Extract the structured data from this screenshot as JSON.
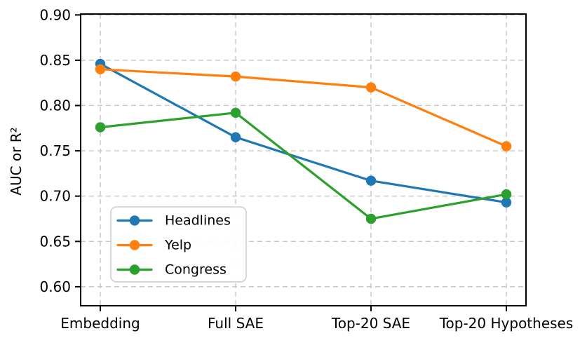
{
  "chart_data": {
    "type": "line",
    "title": "",
    "xlabel": "",
    "ylabel": "AUC or R²",
    "categories": [
      "Embedding",
      "Full SAE",
      "Top-20 SAE",
      "Top-20 Hypotheses"
    ],
    "series": [
      {
        "name": "Headlines",
        "color": "#1f77b4",
        "values": [
          0.846,
          0.765,
          0.717,
          0.693
        ]
      },
      {
        "name": "Yelp",
        "color": "#ff7f0e",
        "values": [
          0.84,
          0.832,
          0.82,
          0.755
        ]
      },
      {
        "name": "Congress",
        "color": "#2ca02c",
        "values": [
          0.776,
          0.792,
          0.675,
          0.702
        ]
      }
    ],
    "ylim": [
      0.579,
      0.901
    ],
    "yticks": [
      0.6,
      0.65,
      0.7,
      0.75,
      0.8,
      0.85,
      0.9
    ],
    "ytick_labels": [
      "0.60",
      "0.65",
      "0.70",
      "0.75",
      "0.80",
      "0.85",
      "0.90"
    ],
    "grid": true,
    "grid_style": "dashed",
    "legend_position": "lower left",
    "legend_items": [
      "Headlines",
      "Yelp",
      "Congress"
    ],
    "colors": {
      "grid": "#c6c6c6",
      "spine": "#000000",
      "text": "#000000",
      "legend_border": "#cccccc",
      "background": "#ffffff"
    }
  }
}
